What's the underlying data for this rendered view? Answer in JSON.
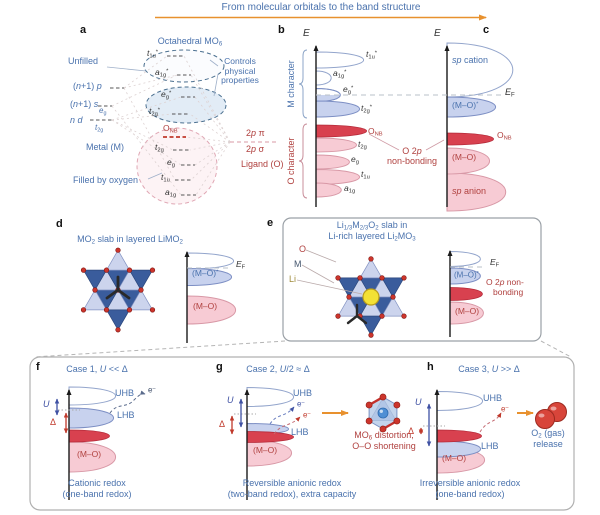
{
  "header": {
    "title": "From molecular orbitals to the band structure"
  },
  "colors": {
    "accent_blue": "#4a72ad",
    "accent_red": "#b0413f",
    "band_blue": "#c8d2ee",
    "band_pink": "#f7cbd4",
    "band_red": "#d8414f",
    "arrow_orange": "#e8912e",
    "u_arrow_blue": "#3f51a3",
    "delta_arrow_red": "#c0392b",
    "li_yellow": "#f3e135",
    "octahedra_dark_blue": "#3a5c9c",
    "octahedra_light": "#ccd4ed",
    "oxygen_red": "#cc352c"
  },
  "a": {
    "label": "a",
    "title": "Octahedral MO_{6}",
    "unfilled": "Unfilled",
    "np": "(*n*+1) *p*",
    "ns": "(*n*+1) *s*",
    "nd": "*n* *d*",
    "eg_m": "*e*_{g}",
    "t2g_m": "*t*_{2g}",
    "metal": "Metal (M)",
    "filled": "Filled by oxygen",
    "controls": "Controls physical properties",
    "t1u_s": "*t*_{1u}^{*}",
    "a1g_s": "*a*_{1g}^{*}",
    "eg_s": "*e*_{g}^{*}",
    "t2g_s": "*t*_{2g}^{*}",
    "onb": "O_{NB}",
    "t2g": "*t*_{2g}",
    "eg": "*e*_{g}",
    "t1u": "*t*_{1u}",
    "a1g": "*a*_{1g}",
    "p_pi": "2*p* π",
    "p_sig": "2*p* σ",
    "ligand": "Ligand (O)"
  },
  "b": {
    "label": "b",
    "axis": "*E*",
    "m_char": "M character",
    "o_char": "O character",
    "t1u_s": "*t*_{1u}^{*}",
    "a1g_s": "*a*_{1g}^{*}",
    "eg_s": "*e*_{g}^{*}",
    "t2g_s": "*t*_{2g}^{*}",
    "onb": "O_{NB}",
    "t2g": "*t*_{2g}",
    "eg": "*e*_{g}",
    "t1u": "*t*_{1u}",
    "a1g": "*a*_{1g}",
    "nb1": "O 2*p*",
    "nb2": "non-bonding"
  },
  "c": {
    "label": "c",
    "axis": "*E*",
    "sp_cation": "*sp* cation",
    "ef": "*E*_{F}",
    "mo_s": "(M–O)^{*}",
    "onb": "O_{NB}",
    "mo": "(M–O)",
    "sp_anion": "*sp* anion"
  },
  "d": {
    "label": "d",
    "title": "MO_{2} slab in layered LiMO_{2}",
    "ef": "*E*_{F}",
    "mo_s": "(M–O)^{*}",
    "mo": "(M–O)"
  },
  "e": {
    "label": "e",
    "title1": "Li_{1/3}M_{2/3}O_{2} slab in",
    "title2": "Li-rich layered Li_{2}MO_{3}",
    "o": "O",
    "m": "M",
    "li": "Li",
    "ef": "*E*_{F}",
    "mo_s": "(M–O)^{*}",
    "mo": "(M–O)",
    "nb1": "O 2*p* non-",
    "nb2": "bonding"
  },
  "f": {
    "label": "f",
    "title": "Case 1, *U* << Δ",
    "u": "*U*",
    "delta": "Δ",
    "uhb": "UHB",
    "lhb": "LHB",
    "mo": "(M–O)",
    "e1": "e^{–}",
    "cap1": "Cationic redox",
    "cap2": "(one-band redox)"
  },
  "g": {
    "label": "g",
    "title": "Case 2, *U*/2 ≈ Δ",
    "u": "*U*",
    "delta": "Δ",
    "uhb": "UHB",
    "lhb": "LHB",
    "mo": "(M–O)",
    "e1": "e^{–}",
    "e2": "e^{–}",
    "dist1": "MO_{6} distortion,",
    "dist2": "O–O shortening",
    "cap1": "Reversible anionic redox",
    "cap2": "(two-band redox), extra capacity"
  },
  "h": {
    "label": "h",
    "title": "Case 3, *U* >> Δ",
    "u": "*U*",
    "delta": "Δ",
    "uhb": "UHB",
    "lhb": "LHB",
    "mo": "(M–O)",
    "e1": "e^{–}",
    "o2_1": "O_{2} (gas)",
    "o2_2": "release",
    "cap1": "Irreversible anionic redox",
    "cap2": "(one-band redox)"
  }
}
